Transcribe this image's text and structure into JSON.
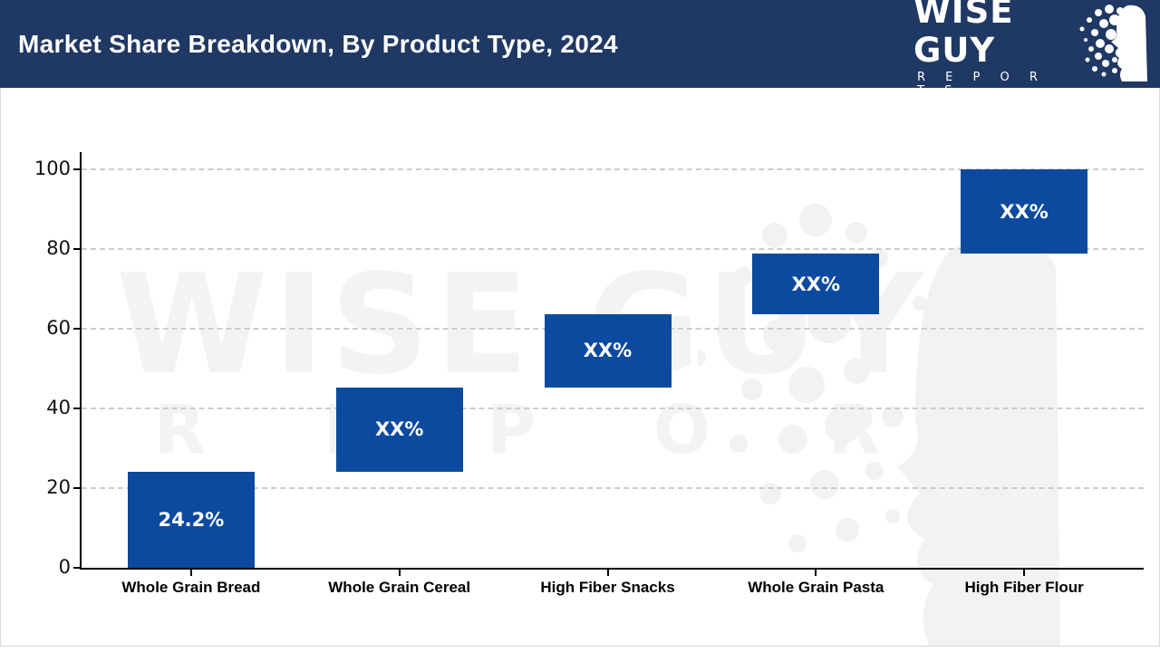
{
  "header": {
    "title": "Market Share Breakdown, By Product Type, 2024",
    "bg_color": "#1f3864",
    "logo": {
      "line1": "WISE GUY",
      "line2": "R E P O R T S"
    }
  },
  "watermark": {
    "line1": "WISE GUY",
    "line2": "R E P O R T S"
  },
  "chart_data": {
    "type": "bar",
    "subtype": "floating-waterfall",
    "title": "Market Share Breakdown, By Product Type, 2024",
    "categories": [
      "Whole Grain Bread",
      "Whole Grain Cereal",
      "High Fiber Snacks",
      "Whole Grain Pasta",
      "High Fiber Flour"
    ],
    "segments": [
      [
        0,
        24.2
      ],
      [
        24.2,
        45.3
      ],
      [
        45.3,
        63.6
      ],
      [
        63.6,
        78.8
      ],
      [
        78.8,
        100
      ]
    ],
    "values": [
      24.2,
      21.1,
      18.3,
      15.2,
      21.2
    ],
    "bar_labels": [
      "24.2%",
      "XX%",
      "XX%",
      "XX%",
      "XX%"
    ],
    "xlabel": "",
    "ylabel": "",
    "y_ticks": [
      0,
      20,
      40,
      60,
      80,
      100
    ],
    "ylim": [
      0,
      105
    ],
    "bar_color": "#0b4a9e",
    "grid": "horizontal-dashed",
    "legend": "none"
  }
}
